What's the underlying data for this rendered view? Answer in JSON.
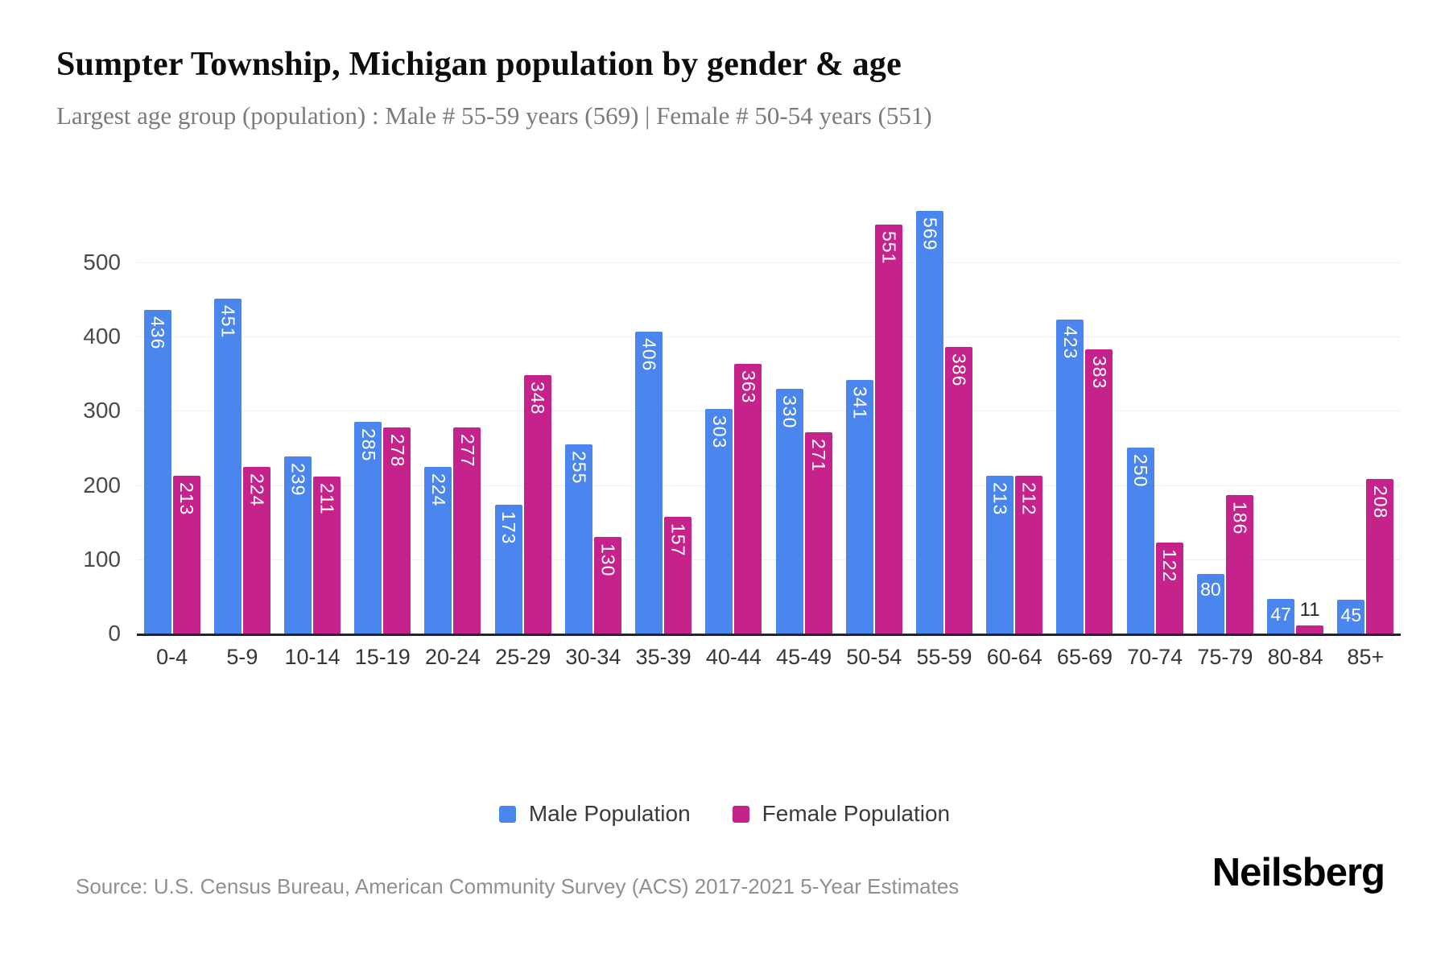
{
  "page": {
    "title": "Sumpter Township, Michigan population by gender & age",
    "subtitle": "Largest age group (population) : Male # 55-59 years (569) | Female # 50-54 years (551)",
    "source": "Source: U.S. Census Bureau, American Community Survey (ACS) 2017-2021 5-Year Estimates",
    "brand": "Neilsberg"
  },
  "chart_data": {
    "type": "bar",
    "title": "Sumpter Township, Michigan population by gender & age",
    "xlabel": "",
    "ylabel": "",
    "grid": true,
    "legend_position": "bottom",
    "ylim": [
      0,
      580
    ],
    "yticks": [
      0,
      100,
      200,
      300,
      400,
      500
    ],
    "categories": [
      "0-4",
      "5-9",
      "10-14",
      "15-19",
      "20-24",
      "25-29",
      "30-34",
      "35-39",
      "40-44",
      "45-49",
      "50-54",
      "55-59",
      "60-64",
      "65-69",
      "70-74",
      "75-79",
      "80-84",
      "85+"
    ],
    "series": [
      {
        "name": "Male Population",
        "color": "#4a86ed",
        "values": [
          436,
          451,
          239,
          285,
          224,
          173,
          255,
          406,
          303,
          330,
          341,
          569,
          213,
          423,
          250,
          80,
          47,
          45
        ]
      },
      {
        "name": "Female Population",
        "color": "#c6228c",
        "values": [
          213,
          224,
          211,
          278,
          277,
          348,
          130,
          157,
          363,
          271,
          551,
          386,
          212,
          383,
          122,
          186,
          11,
          208
        ]
      }
    ]
  }
}
